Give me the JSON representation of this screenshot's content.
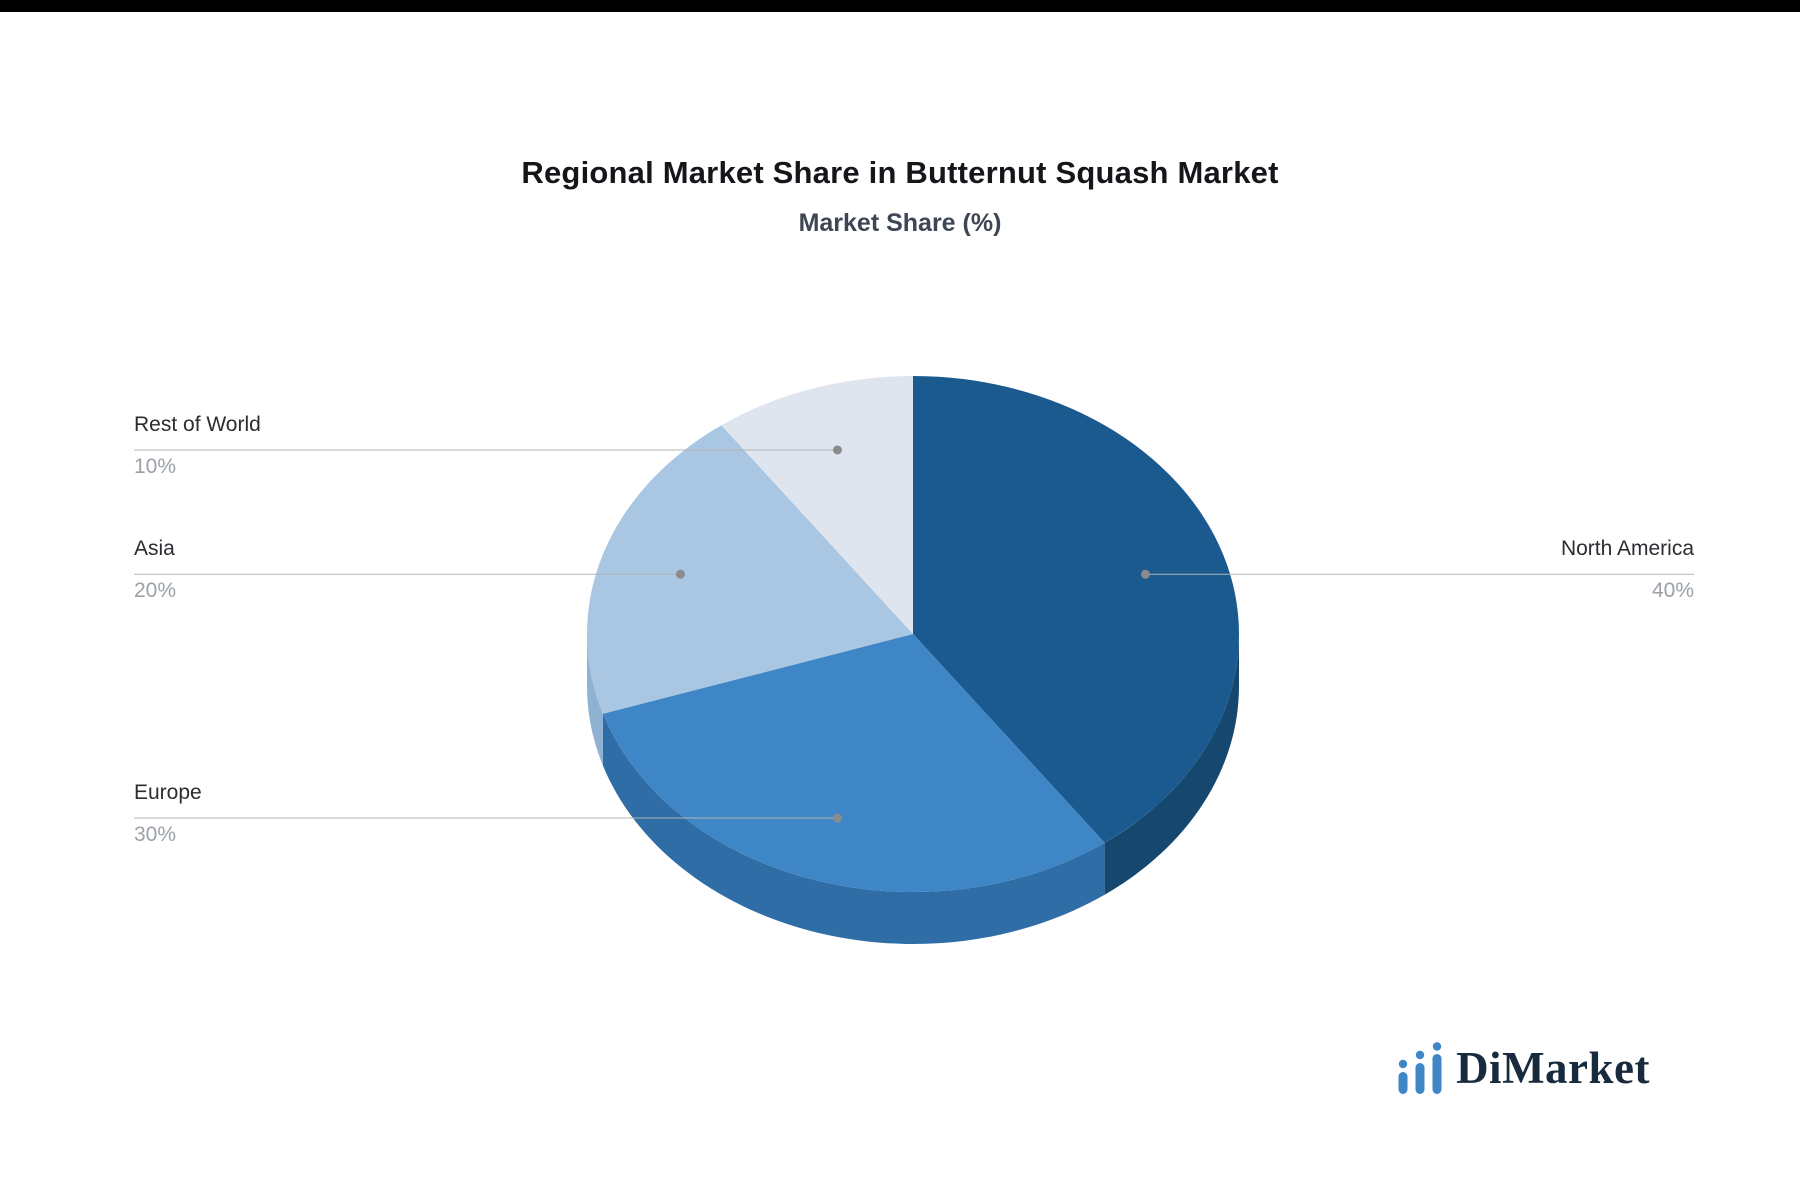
{
  "page": {
    "title": "Regional Market Share in Butternut Squash Market",
    "subtitle": "Market Share (%)"
  },
  "logo": {
    "text": "DiMarket",
    "icon": "bar-chart-icon",
    "accent": "#3f86c6",
    "text_color": "#182a3d"
  },
  "chart_data": {
    "type": "pie",
    "title": "Regional Market Share in Butternut Squash Market",
    "subtitle": "Market Share (%)",
    "unit": "%",
    "categories": [
      "North America",
      "Europe",
      "Asia",
      "Rest of World"
    ],
    "values": [
      40,
      30,
      20,
      10
    ],
    "value_labels": [
      "40%",
      "30%",
      "20%",
      "10%"
    ],
    "colors": [
      "#1b5a8f",
      "#3f86c6",
      "#a9c6e2",
      "#dfe5ef"
    ],
    "side_colors": [
      "#15476f",
      "#2f6da7",
      "#8fb2d2",
      "#c9d4e3"
    ],
    "start_angle_deg": 0,
    "direction": "clockwise",
    "style": "3d",
    "legend_position": "callouts",
    "leader_line_color": "#b3b3b3",
    "leader_dot_color": "#8b8b8b"
  }
}
